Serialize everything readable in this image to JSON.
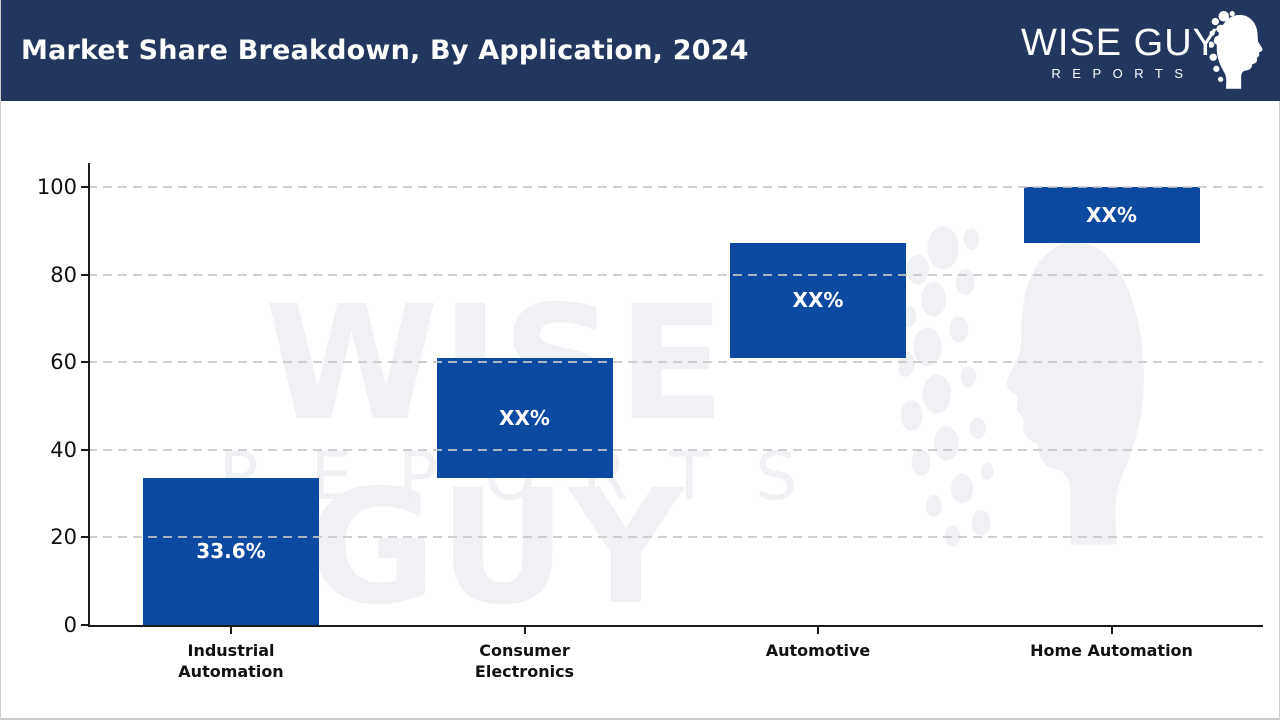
{
  "header": {
    "title": "Market Share Breakdown, By Application, 2024",
    "logo": {
      "line1": "WISE GUY",
      "line2": "REPORTS"
    }
  },
  "watermark": {
    "line1": "WISE GUY",
    "line2": "REPORTS"
  },
  "chart_data": {
    "type": "bar",
    "subtype": "waterfall",
    "title": "Market Share Breakdown, By Application, 2024",
    "categories": [
      "Industrial\nAutomation",
      "Consumer\nElectronics",
      "Automotive",
      "Home Automation"
    ],
    "segments": [
      {
        "category": "Industrial Automation",
        "start": 0,
        "end": 33.6,
        "value": 33.6,
        "label": "33.6%"
      },
      {
        "category": "Consumer Electronics",
        "start": 33.6,
        "end": 61.0,
        "value": 27.4,
        "label": "XX%"
      },
      {
        "category": "Automotive",
        "start": 61.0,
        "end": 87.3,
        "value": 26.3,
        "label": "XX%"
      },
      {
        "category": "Home Automation",
        "start": 87.3,
        "end": 100.0,
        "value": 12.7,
        "label": "XX%"
      }
    ],
    "ylim": [
      0,
      100
    ],
    "yticks": [
      "0",
      "20",
      "40",
      "60",
      "80",
      "100"
    ],
    "grid": "horizontal-dashed",
    "legend": "none",
    "xlabel": "",
    "ylabel": "",
    "bar_color": "#0b4aa0",
    "gridline_color": "#d9d9d9"
  }
}
